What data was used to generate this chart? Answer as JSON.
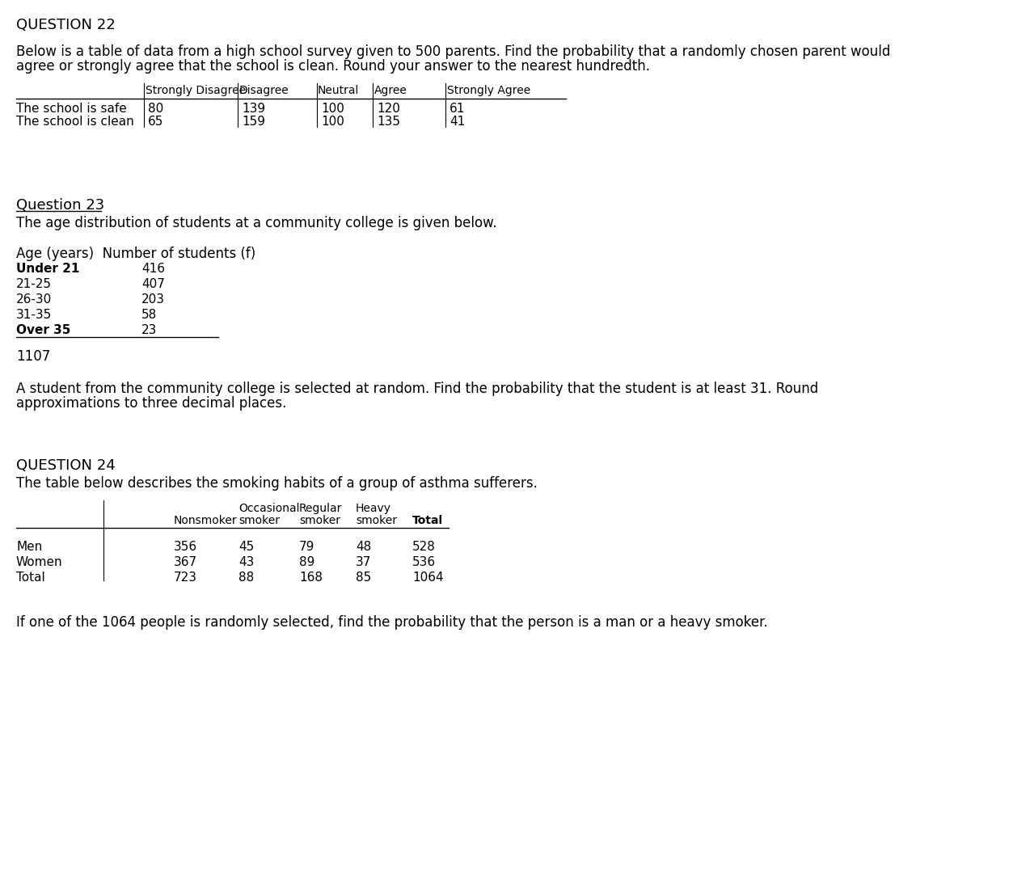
{
  "bg_color": "#ffffff",
  "text_color": "#000000",
  "q22_title": "QUESTION 22",
  "q22_body1": "Below is a table of data from a high school survey given to 500 parents. Find the probability that a randomly chosen parent would",
  "q22_body2": "agree or strongly agree that the school is clean. Round your answer to the nearest hundredth.",
  "q22_headers": [
    "Strongly Disagree",
    "Disagree",
    "Neutral",
    "Agree",
    "Strongly Agree"
  ],
  "q22_rows": [
    [
      "The school is safe",
      "80",
      "139",
      "100",
      "120",
      "61"
    ],
    [
      "The school is clean",
      "65",
      "159",
      "100",
      "135",
      "41"
    ]
  ],
  "q23_title": "Question 23",
  "q23_body": "The age distribution of students at a community college is given below.",
  "q23_col1_header": "Age (years)",
  "q23_col2_header": "Number of students (f)",
  "q23_rows": [
    [
      "Under 21",
      "416"
    ],
    [
      "21-25",
      "407"
    ],
    [
      "26-30",
      "203"
    ],
    [
      "31-35",
      "58"
    ],
    [
      "Over 35",
      "23"
    ]
  ],
  "q23_total": "1107",
  "q23_q1": "A student from the community college is selected at random. Find the probability that the student is at least 31. Round",
  "q23_q2": "approximations to three decimal places.",
  "q24_title": "QUESTION 24",
  "q24_body": "The table below describes the smoking habits of a group of asthma sufferers.",
  "q24_header_row1": [
    "",
    "",
    "Occasional",
    "Regular",
    "Heavy",
    ""
  ],
  "q24_header_row2": [
    "",
    "Nonsmoker",
    "smoker",
    "smoker",
    "smoker",
    "Total"
  ],
  "q24_rows": [
    [
      "Men",
      "356",
      "45",
      "79",
      "48",
      "528"
    ],
    [
      "Women",
      "367",
      "43",
      "89",
      "37",
      "536"
    ],
    [
      "Total",
      "723",
      "88",
      "168",
      "85",
      "1064"
    ]
  ],
  "q24_question": "If one of the 1064 people is randomly selected, find the probability that the person is a man or a heavy smoker."
}
